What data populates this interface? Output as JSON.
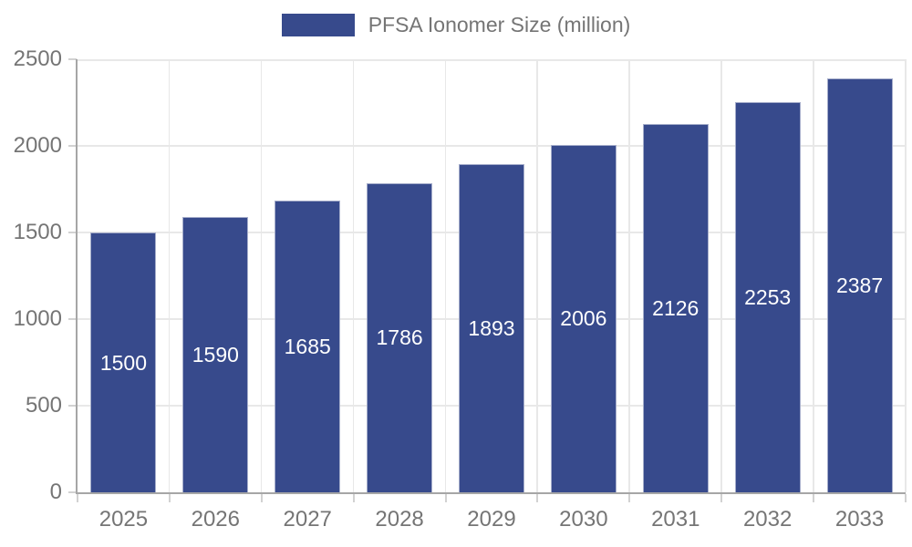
{
  "chart_data": {
    "type": "bar",
    "title": "",
    "series_name": "PFSA Ionomer Size (million)",
    "categories": [
      "2025",
      "2026",
      "2027",
      "2028",
      "2029",
      "2030",
      "2031",
      "2032",
      "2033"
    ],
    "values": [
      1500,
      1590,
      1685,
      1786,
      1893,
      2006,
      2126,
      2253,
      2387
    ],
    "xlabel": "",
    "ylabel": "",
    "ylim": [
      0,
      2500
    ],
    "yticks": [
      0,
      500,
      1000,
      1500,
      2000,
      2500
    ],
    "grid": true,
    "legend_position": "top",
    "bar_color": "#374A8C",
    "bar_label_color": "#FFFFFF",
    "axis_text_color": "#757575"
  }
}
